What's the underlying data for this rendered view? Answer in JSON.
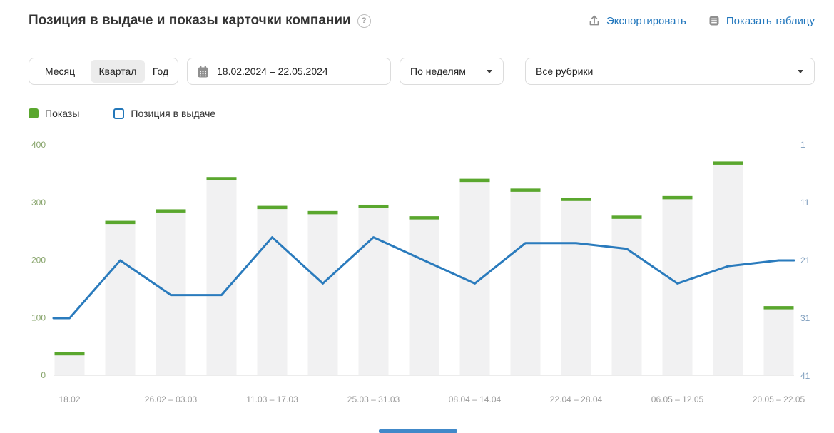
{
  "header": {
    "title": "Позиция в выдаче и показы карточки компании",
    "help": "?",
    "actions": [
      {
        "label": "Экспортировать",
        "icon": "export-icon"
      },
      {
        "label": "Показать таблицу",
        "icon": "table-icon"
      }
    ]
  },
  "filters": {
    "period_tabs": [
      {
        "label": "Месяц",
        "selected": false
      },
      {
        "label": "Квартал",
        "selected": true
      },
      {
        "label": "Год",
        "selected": false
      }
    ],
    "date_range": {
      "icon": "calendar-icon",
      "value": "18.02.2024 – 22.05.2024"
    },
    "granularity_select": {
      "value": "По неделям"
    },
    "rubrics_select": {
      "value": "Все рубрики"
    }
  },
  "legend": [
    {
      "label": "Показы",
      "swatch": "filled",
      "color": "#5aa72e"
    },
    {
      "label": "Позиция в выдаче",
      "swatch": "outline",
      "color": "#2377b9"
    }
  ],
  "chart_data": {
    "type": "bar+line dual-axis, weekly points",
    "n_points": 15,
    "x_tick_labels": [
      "18.02",
      "26.02 – 03.03",
      "11.03 – 17.03",
      "25.03 – 31.03",
      "08.04 – 14.04",
      "22.04 – 28.04",
      "06.05 – 12.05",
      "20.05 – 22.05"
    ],
    "x_tick_every": 2,
    "series": [
      {
        "name": "Показы",
        "type": "bar",
        "axis": "left",
        "color": "#5aa72e",
        "bar_fill": "#f1f1f2",
        "values": [
          40,
          268,
          288,
          344,
          294,
          285,
          296,
          276,
          341,
          324,
          308,
          277,
          311,
          371,
          120
        ]
      },
      {
        "name": "Позиция в выдаче",
        "type": "line",
        "axis": "right",
        "color": "#2a7bbd",
        "values": [
          31,
          21,
          27,
          27,
          17,
          25,
          17,
          21,
          25,
          18,
          18,
          19,
          25,
          22,
          21
        ]
      }
    ],
    "left_axis": {
      "ticks": [
        "400",
        "300",
        "200",
        "100",
        "0"
      ],
      "range": [
        0,
        400
      ],
      "color": "#87a46b"
    },
    "right_axis": {
      "ticks": [
        "1",
        "11",
        "21",
        "31",
        "41"
      ],
      "range": [
        1,
        41
      ],
      "inverted": true,
      "color": "#7d9dbd"
    },
    "grid": false,
    "legend_position": "top-left"
  },
  "colors": {
    "link_blue": "#2277bd",
    "bar_green": "#5aa72e",
    "line_blue": "#2a7bbd",
    "icon_gray": "#8f8f8f",
    "xtick_gray": "#9b9b9b"
  }
}
